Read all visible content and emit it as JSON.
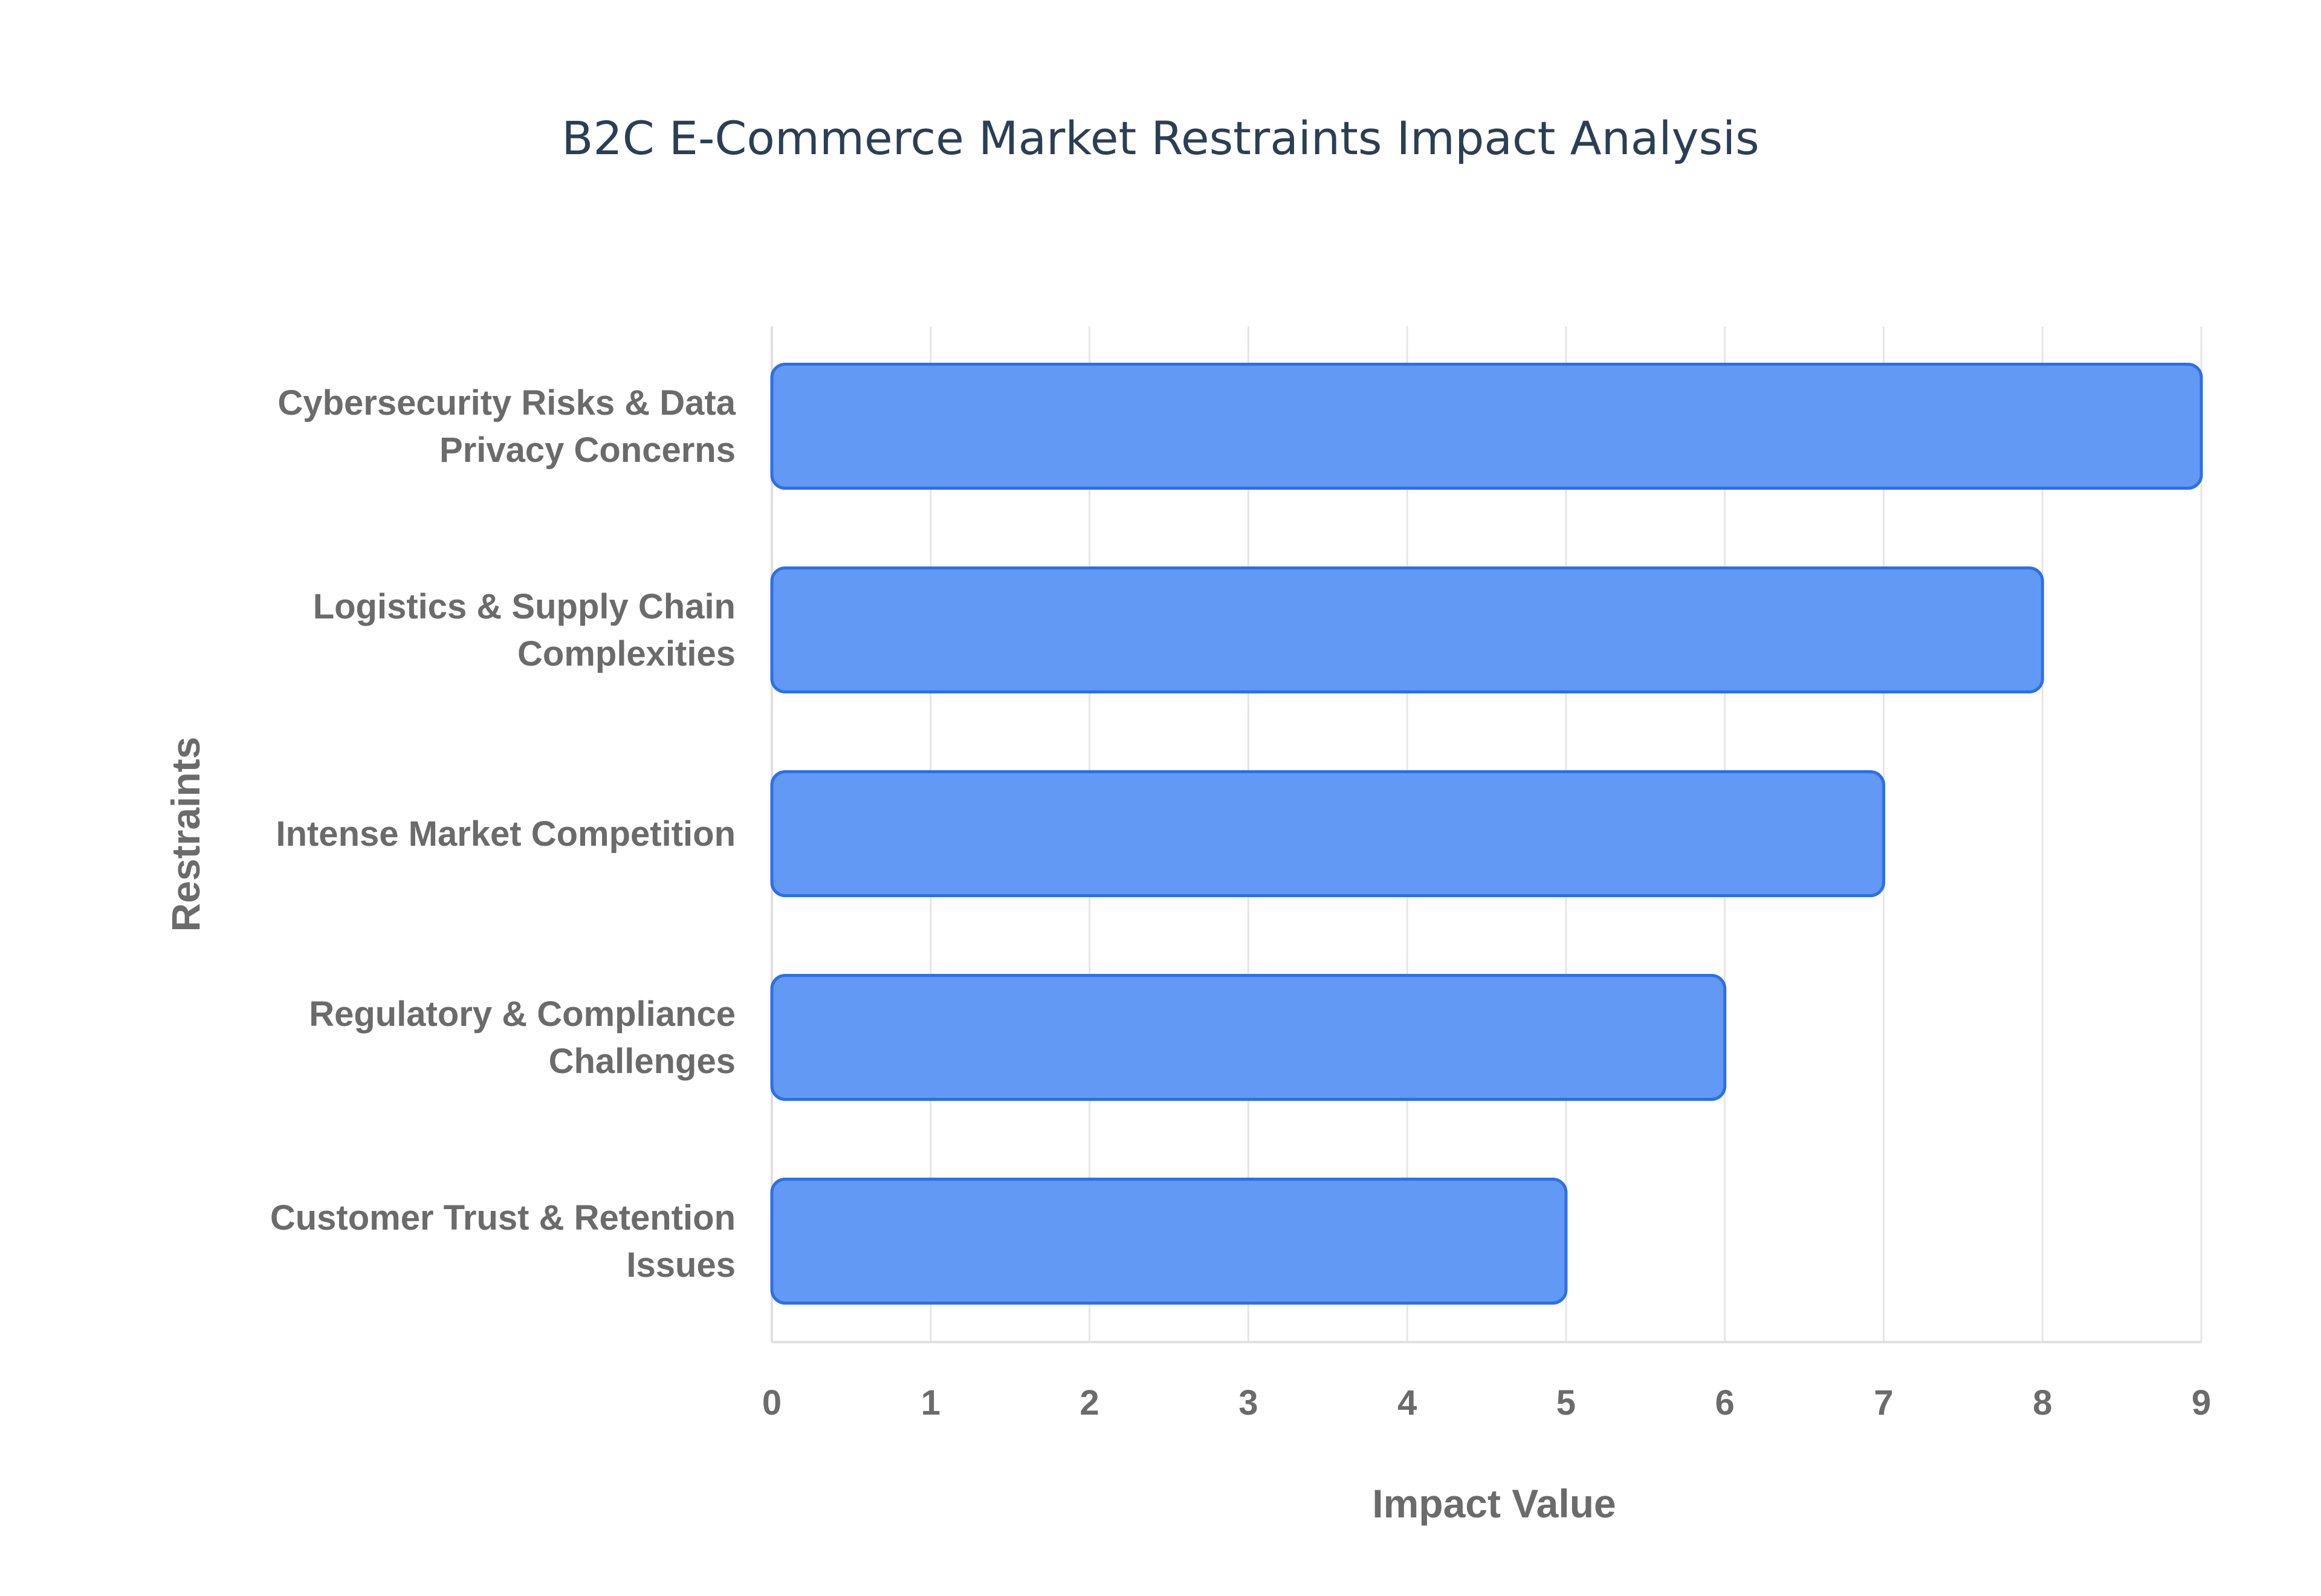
{
  "chart_data": {
    "type": "bar",
    "orientation": "horizontal",
    "title": "B2C E-Commerce Market Restraints Impact Analysis",
    "xlabel": "Impact Value",
    "ylabel": "Restraints",
    "categories": [
      [
        "Cybersecurity Risks & Data",
        "Privacy Concerns"
      ],
      [
        "Logistics & Supply Chain",
        "Complexities"
      ],
      [
        "Intense Market Competition"
      ],
      [
        "Regulatory & Compliance",
        "Challenges"
      ],
      [
        "Customer Trust & Retention",
        "Issues"
      ]
    ],
    "values": [
      9,
      8,
      7,
      6,
      5
    ],
    "xlim": [
      0,
      9
    ],
    "xticks": [
      "0",
      "1",
      "2",
      "3",
      "4",
      "5",
      "6",
      "7",
      "8",
      "9"
    ],
    "grid": true,
    "colors": {
      "bar_fill": "#6199f5",
      "bar_stroke": "#2f6fe6",
      "title": "#2a3f54",
      "axis_text": "#6b6b6b",
      "grid": "#e6e6e6"
    }
  }
}
